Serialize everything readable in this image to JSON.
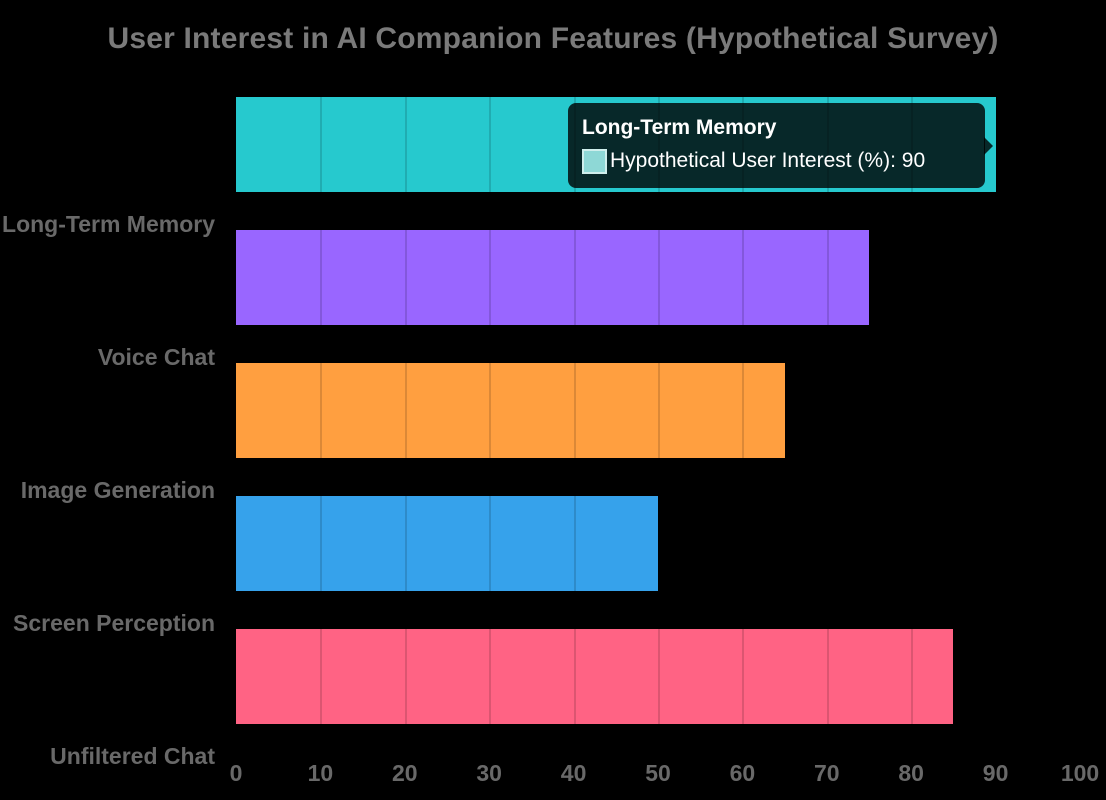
{
  "page": {
    "background": "#000000"
  },
  "title": "User Interest in AI Companion Features (Hypothetical Survey)",
  "chart_data": {
    "type": "bar",
    "orientation": "horizontal",
    "title": "User Interest in AI Companion Features (Hypothetical Survey)",
    "categories": [
      "Long-Term Memory",
      "Voice Chat",
      "Image Generation",
      "Screen Perception",
      "Unfiltered Chat"
    ],
    "series": [
      {
        "name": "Hypothetical User Interest (%)",
        "values": [
          90,
          75,
          65,
          50,
          85
        ]
      }
    ],
    "bar_colors": [
      "#26c9ce",
      "#9966ff",
      "#ff9f40",
      "#36a2eb",
      "#ff6384"
    ],
    "xlabel": "",
    "ylabel": "",
    "xlim": [
      0,
      100
    ],
    "x_ticks": [
      0,
      10,
      20,
      30,
      40,
      50,
      60,
      70,
      80,
      90,
      100
    ],
    "grid": "vertical gridlines at each 10, visible only across bars",
    "legend_position": "none",
    "background": "#000000",
    "axis_text_color": "#696969",
    "title_color": "#7a7a7a"
  },
  "tooltip": {
    "title": "Long-Term Memory",
    "series_name": "Hypothetical User Interest (%)",
    "value": 90,
    "label": "Hypothetical User Interest (%): 90",
    "background": "rgba(0,0,0,0.8)",
    "text_color": "#ffffff",
    "color_box_fill": "#8ed8d6",
    "color_box_border": "#cfeeec"
  }
}
